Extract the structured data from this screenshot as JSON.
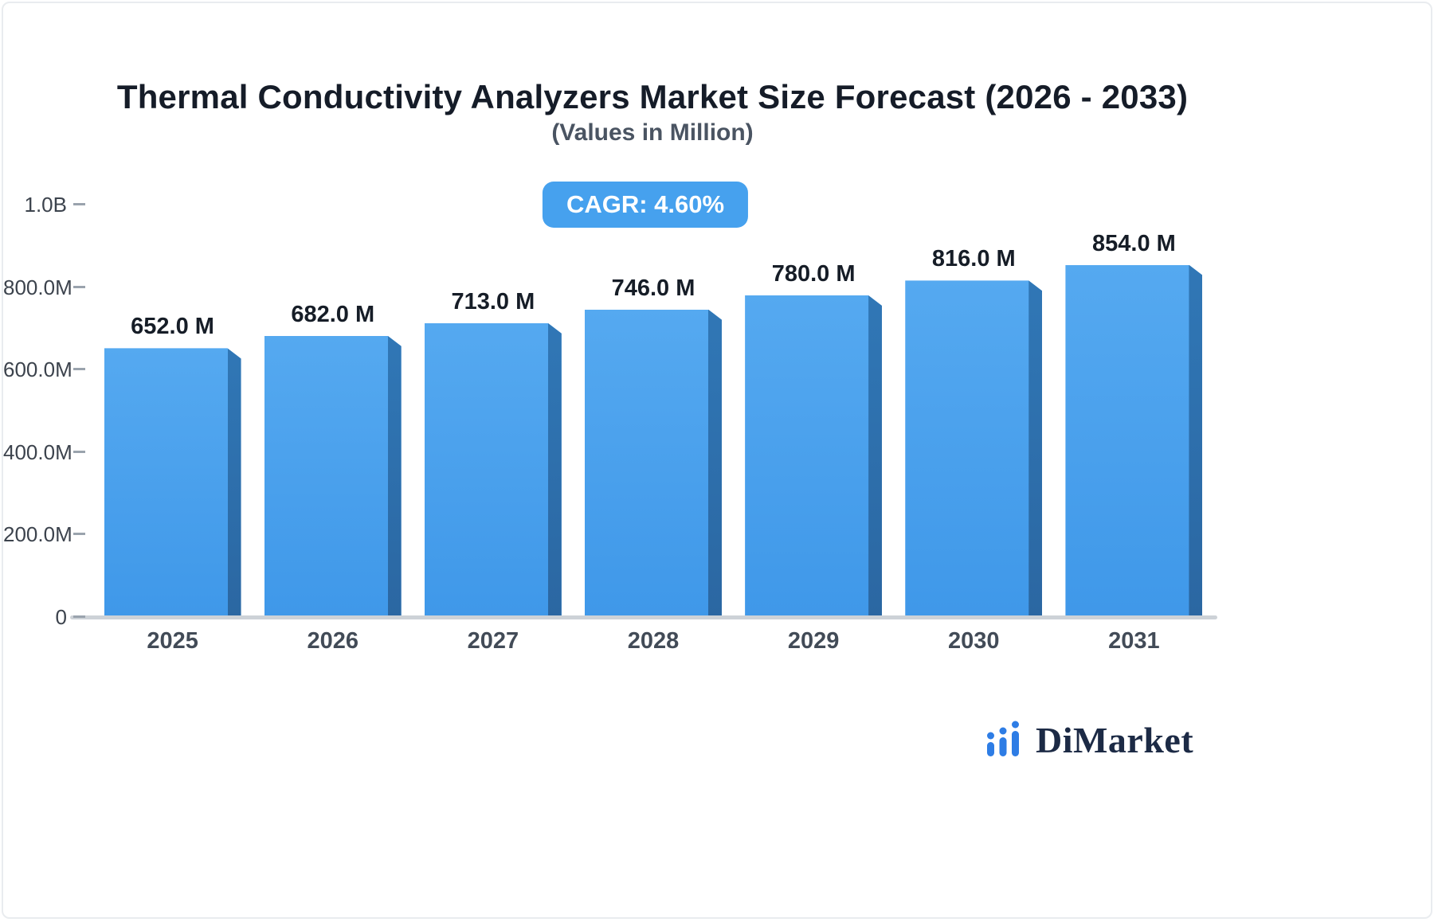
{
  "title": "Thermal Conductivity Analyzers Market Size Forecast (2026 - 2033)",
  "subtitle": "(Values in Million)",
  "badge": {
    "label": "CAGR: 4.60%",
    "bg": "#46a1ee"
  },
  "logo": {
    "text": "DiMarket",
    "icon": "bar-chart-icon",
    "icon_color": "#2e7de5",
    "text_color": "#1c2a45"
  },
  "chart_data": {
    "type": "bar",
    "categories": [
      "2025",
      "2026",
      "2027",
      "2028",
      "2029",
      "2030",
      "2031"
    ],
    "values": [
      652.0,
      682.0,
      713.0,
      746.0,
      780.0,
      816.0,
      854.0
    ],
    "value_labels": [
      "652.0 M",
      "682.0 M",
      "713.0 M",
      "746.0 M",
      "780.0 M",
      "816.0 M",
      "854.0 M"
    ],
    "unit": "Million",
    "xlabel": "",
    "ylabel": "",
    "ylim": [
      0,
      1000
    ],
    "yticks": {
      "values": [
        0,
        200,
        400,
        600,
        800,
        1000
      ],
      "labels": [
        "0",
        "200.0M",
        "400.0M",
        "600.0M",
        "800.0M",
        "1.0B"
      ]
    },
    "grid": false,
    "legend": false,
    "bar_color_top": "#55a9f0",
    "bar_color_bottom": "#3f98e9",
    "bar_side_color": "#3077b6"
  }
}
